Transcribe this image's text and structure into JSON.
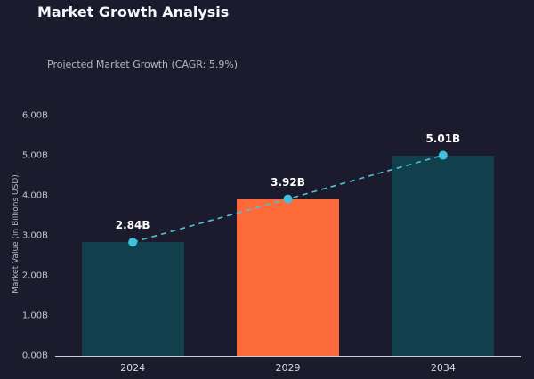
{
  "title": "Market Growth Analysis",
  "subtitle": "Projected Market Growth (CAGR: 5.9%)",
  "chart_data": {
    "type": "bar",
    "categories": [
      "2024",
      "2029",
      "2034"
    ],
    "values": [
      2.84,
      3.92,
      5.01
    ],
    "data_labels": [
      "2.84B",
      "3.92B",
      "5.01B"
    ],
    "title": "Market Growth Analysis",
    "subtitle": "Projected Market Growth (CAGR: 5.9%)",
    "xlabel": "",
    "ylabel": "Market Value (in Billions USD)",
    "ylim": [
      0,
      6
    ],
    "yticks": [
      "0.00B",
      "1.00B",
      "2.00B",
      "3.00B",
      "4.00B",
      "5.00B",
      "6.00B"
    ],
    "grid": false,
    "legend": false,
    "bar_colors": [
      "#113f4b",
      "#fb6a38",
      "#113f4b"
    ],
    "trend_line": {
      "style": "dashed",
      "color": "#4dc3da",
      "marker_color": "#3fc1dd",
      "points": [
        2.84,
        3.92,
        5.01
      ]
    },
    "colors": {
      "background": "#1b1b2d",
      "title_text": "#f5f6fa",
      "muted_text": "#b4b6c2",
      "axis_line": "#c9cad3",
      "data_label_text": "#ffffff"
    }
  }
}
